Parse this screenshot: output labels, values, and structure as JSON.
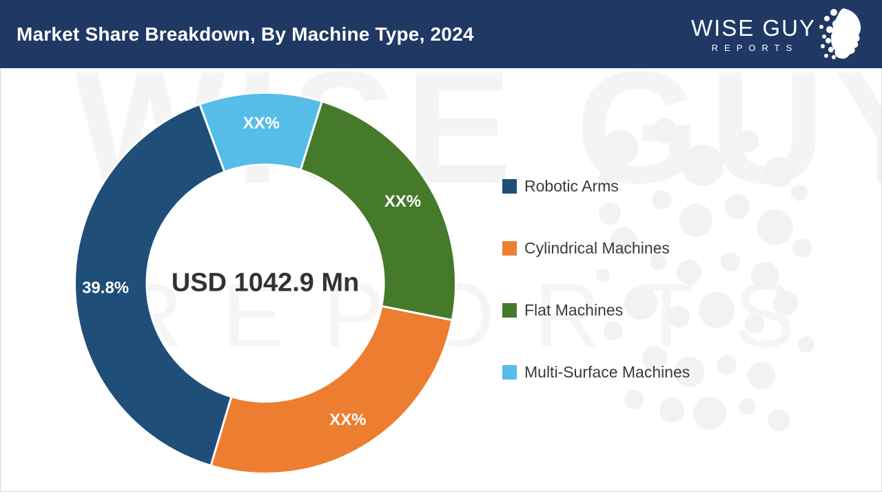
{
  "header": {
    "title": "Market Share Breakdown, By Machine Type, 2024",
    "brand": {
      "line1": "WISE GUY",
      "line2": "REPORTS"
    }
  },
  "watermark": {
    "line1": "WISE GUY",
    "line2": "REPORTS"
  },
  "chart_data": {
    "type": "pie",
    "subtype": "donut",
    "title": "Market Share Breakdown, By Machine Type, 2024",
    "center_label": "USD 1042.9 Mn",
    "legend_position": "right",
    "start_angle_deg": 196.6,
    "draw_sequence": [
      0,
      3,
      2,
      1
    ],
    "slices": [
      {
        "name": "Robotic Arms",
        "value_pct": 39.8,
        "display_label": "39.8%",
        "color": "#1f4e79"
      },
      {
        "name": "Cylindrical Machines",
        "value_pct": 26.5,
        "display_label": "XX%",
        "color": "#ed7d31"
      },
      {
        "name": "Flat Machines",
        "value_pct": 23.3,
        "display_label": "XX%",
        "color": "#447a2a"
      },
      {
        "name": "Multi-Surface Machines",
        "value_pct": 10.4,
        "display_label": "XX%",
        "color": "#56bde8"
      }
    ]
  },
  "colors": {
    "header_bg": "#203864",
    "center_text": "#333333",
    "legend_text": "#3a3a3a",
    "slice_gap": "#ffffff"
  }
}
